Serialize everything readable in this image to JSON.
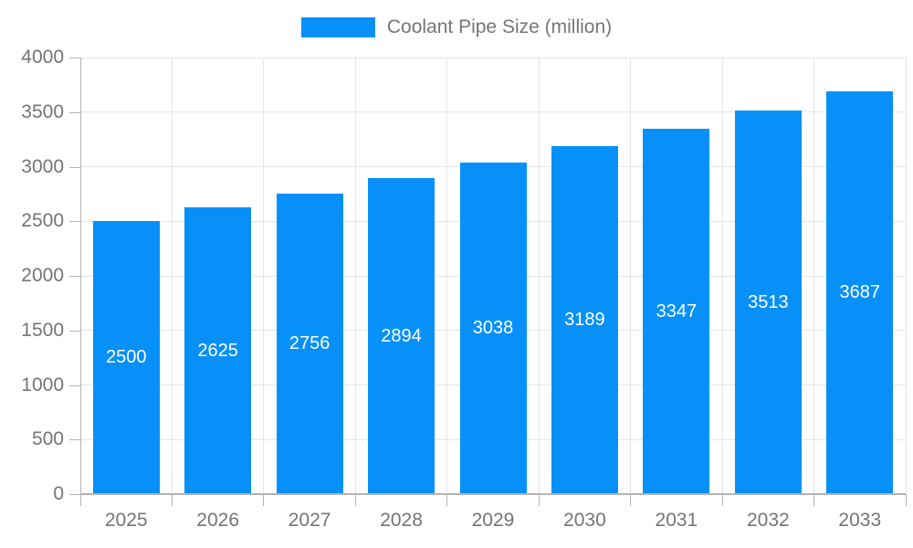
{
  "legend": {
    "label": "Coolant Pipe Size (million)"
  },
  "colors": {
    "bar": "#0690f8",
    "grid": "#e6e6e6",
    "axis": "#b3b3b3",
    "tick_text": "#757575",
    "value_label_text": "#ffffff",
    "background": "#ffffff"
  },
  "chart_data": {
    "type": "bar",
    "title": "",
    "legend": [
      "Coolant Pipe Size (million)"
    ],
    "legend_position": "top-center",
    "categories": [
      "2025",
      "2026",
      "2027",
      "2028",
      "2029",
      "2030",
      "2031",
      "2032",
      "2033"
    ],
    "series": [
      {
        "name": "Coolant Pipe Size (million)",
        "values": [
          2500,
          2625,
          2756,
          2894,
          3038,
          3189,
          3347,
          3513,
          3687
        ]
      }
    ],
    "xlabel": "",
    "ylabel": "",
    "ylim": [
      0,
      4000
    ],
    "yticks": [
      0,
      500,
      1000,
      1500,
      2000,
      2500,
      3000,
      3500,
      4000
    ],
    "grid": true,
    "value_labels": "inside-center"
  }
}
